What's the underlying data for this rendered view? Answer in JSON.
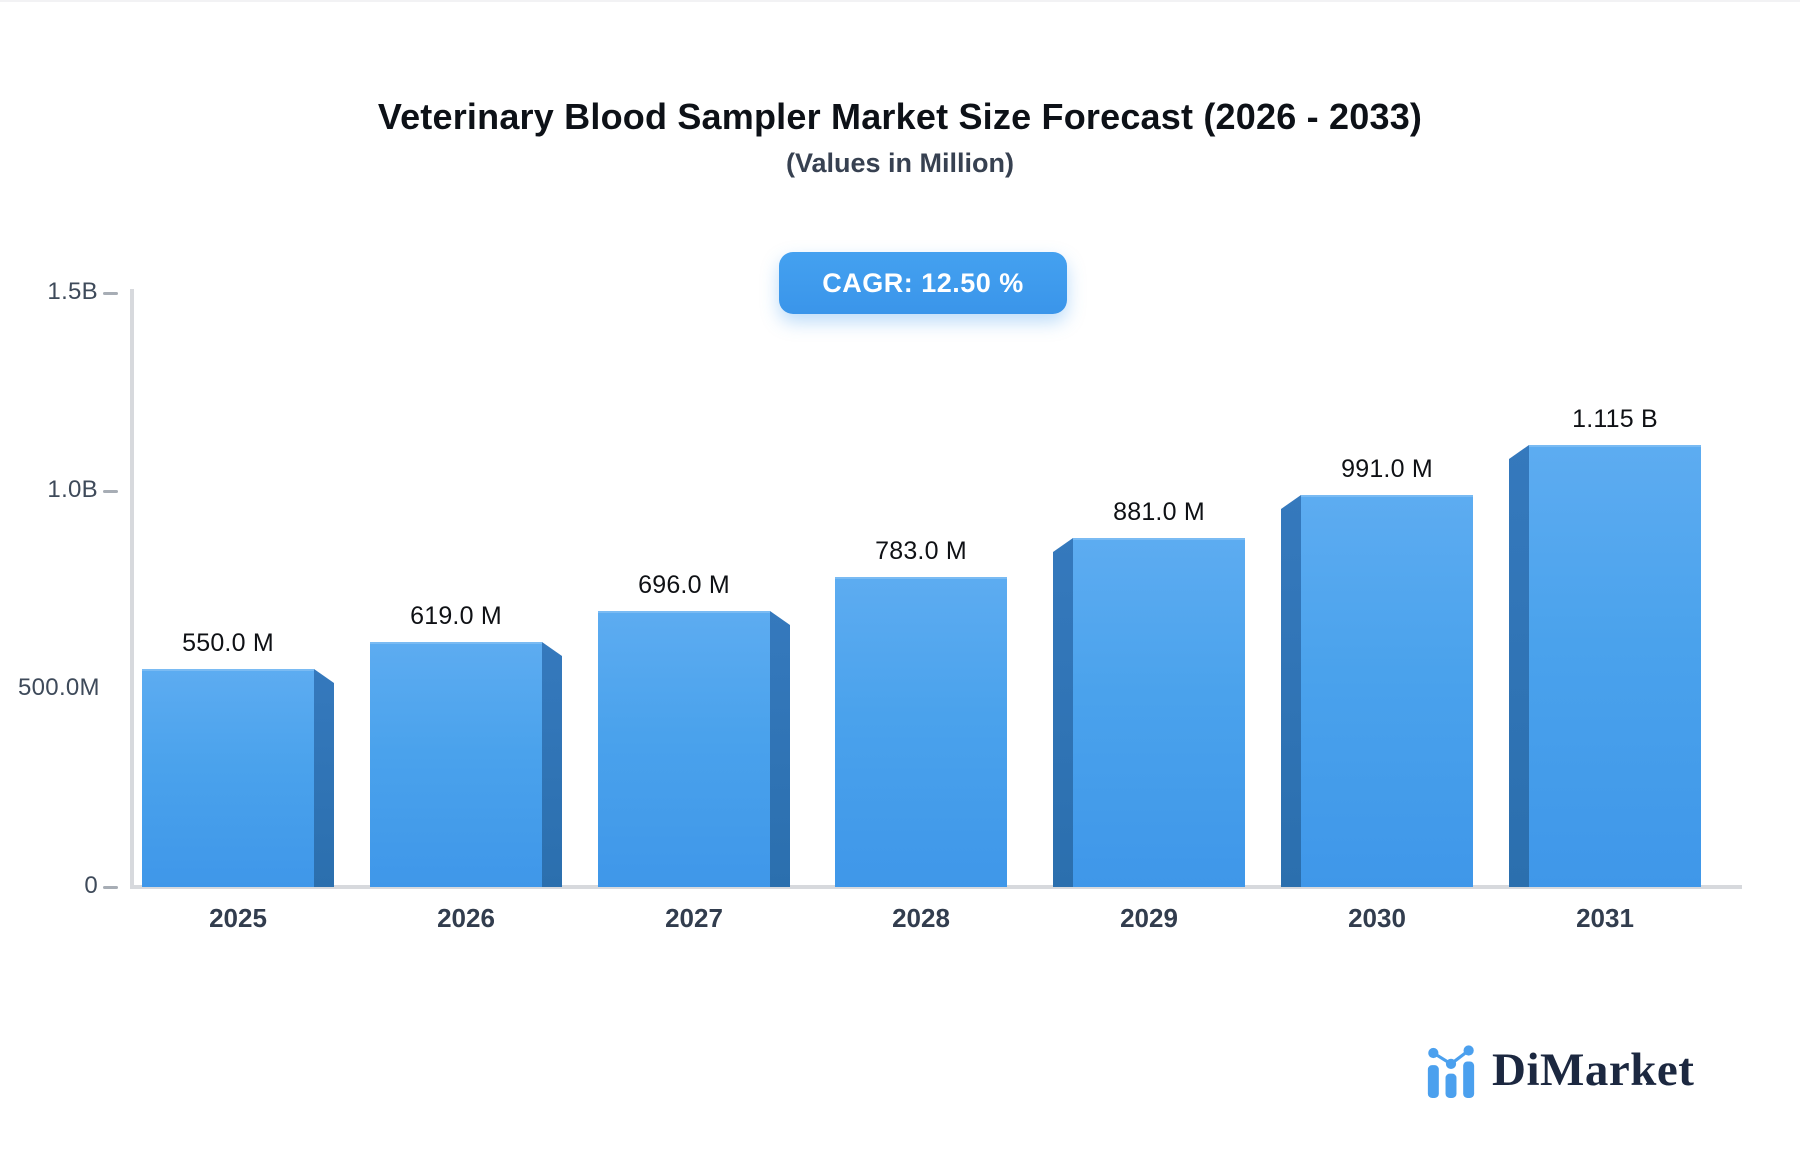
{
  "header": {
    "title": "Veterinary Blood Sampler Market Size Forecast (2026 - 2033)",
    "subtitle": "(Values in Million)",
    "cagr_badge": "CAGR: 12.50 %"
  },
  "chart_data": {
    "type": "bar",
    "title": "Veterinary Blood Sampler Market Size Forecast (2026 - 2033)",
    "subtitle": "(Values in Million)",
    "cagr_percent": 12.5,
    "categories": [
      "2025",
      "2026",
      "2027",
      "2028",
      "2029",
      "2030",
      "2031"
    ],
    "values_millions": [
      550,
      619,
      696,
      783,
      881,
      991,
      1115
    ],
    "bar_labels": [
      "550.0 M",
      "619.0 M",
      "696.0 M",
      "783.0 M",
      "881.0 M",
      "991.0 M",
      "1.115 B"
    ],
    "y_ticks": [
      {
        "label": "1.5B",
        "value_m": 1500,
        "dash": true
      },
      {
        "label": "1.0B",
        "value_m": 1000,
        "dash": true
      },
      {
        "label": "500.0M",
        "value_m": 500,
        "dash": false
      },
      {
        "label": "0",
        "value_m": 0,
        "dash": true
      }
    ],
    "ylim_millions": [
      0,
      1500
    ],
    "grid": "off",
    "legend": "none",
    "bar_color": "#4AA2EC",
    "bar_side_color": "#2E74B4",
    "axis_color": "#D7D9DD"
  },
  "footer": {
    "logo_text": "DiMarket",
    "logo_icon": "bar-chart-with-trendline-icon",
    "logo_blue": "#4BA0EE",
    "logo_text_color": "#1C2840"
  }
}
